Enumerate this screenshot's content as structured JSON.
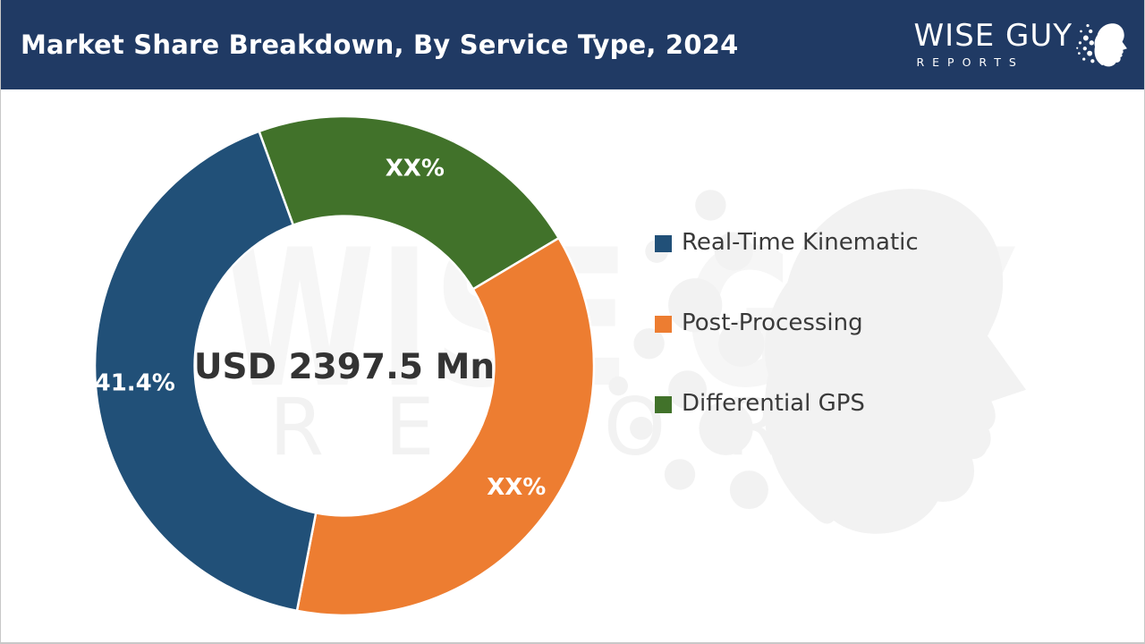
{
  "header": {
    "title": "Market Share Breakdown, By Service Type, 2024",
    "logo": {
      "line1": "WISE GUY",
      "line2": "REPORTS"
    }
  },
  "watermark": {
    "line1": "WISE GUY",
    "line2": "REPORTS"
  },
  "colors": {
    "header_bg": "#203a64",
    "center_text": "#333333",
    "legend_text": "#3a3a3a",
    "page_border": "#c8c8c8"
  },
  "chart_data": {
    "type": "donut",
    "title": "Market Share Breakdown, By Service Type, 2024",
    "center_label": "USD 2397.5 Mn",
    "start_angle_deg": 110,
    "direction": "clockwise",
    "inner_radius_ratio": 0.6,
    "legend_position": "right",
    "segments": [
      {
        "name": "Real-Time Kinematic",
        "value_pct": 41.4,
        "label": "41.4%",
        "color": "#215078"
      },
      {
        "name": "Post-Processing",
        "value_pct": 36.6,
        "label": "XX%",
        "color": "#ed7d31"
      },
      {
        "name": "Differential GPS",
        "value_pct": 22.0,
        "label": "XX%",
        "color": "#41722a"
      }
    ]
  }
}
